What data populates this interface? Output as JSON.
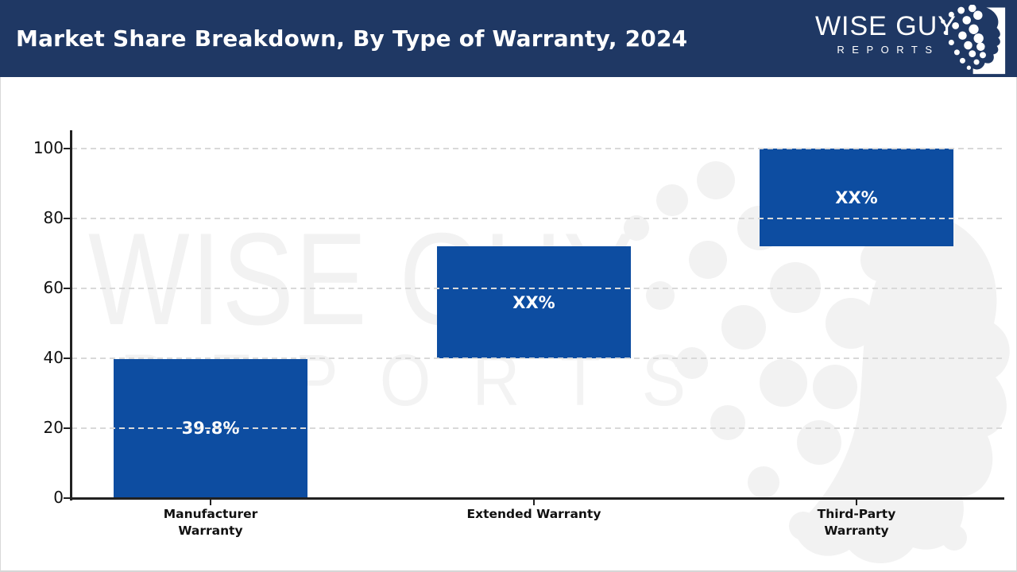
{
  "header": {
    "title": "Market Share Breakdown, By Type of Warranty, 2024",
    "logo": {
      "line1": "WISE GUY",
      "line2": "REPORTS"
    }
  },
  "watermark": {
    "line1": "WISE GUY",
    "line2": "REPORTS"
  },
  "colors": {
    "header_bg": "#1f3864",
    "bar": "#0d4da1",
    "grid": "#d9d9d9",
    "axis": "#212121",
    "bar_label_text": "#ffffff",
    "watermark": "#f2f2f2"
  },
  "chart_data": {
    "type": "bar",
    "subtype": "floating-bars-waterfall",
    "title": "Market Share Breakdown, By Type of Warranty, 2024",
    "categories": [
      "Manufacturer Warranty",
      "Extended Warranty",
      "Third-Party Warranty"
    ],
    "category_lines": [
      [
        "Manufacturer",
        "Warranty"
      ],
      [
        "Extended Warranty"
      ],
      [
        "Third-Party",
        "Warranty"
      ]
    ],
    "bars": [
      {
        "category": "Manufacturer Warranty",
        "start": 0,
        "end": 39.8,
        "label": "39.8%"
      },
      {
        "category": "Extended Warranty",
        "start": 40,
        "end": 72,
        "label": "XX%"
      },
      {
        "category": "Third-Party Warranty",
        "start": 72,
        "end": 100,
        "label": "XX%"
      }
    ],
    "yticks": [
      0,
      20,
      40,
      60,
      80,
      100
    ],
    "ylim": [
      0,
      100
    ],
    "xlabel": "",
    "ylabel": "",
    "grid": "horizontal-dashed-over-bars",
    "legend": "none"
  }
}
